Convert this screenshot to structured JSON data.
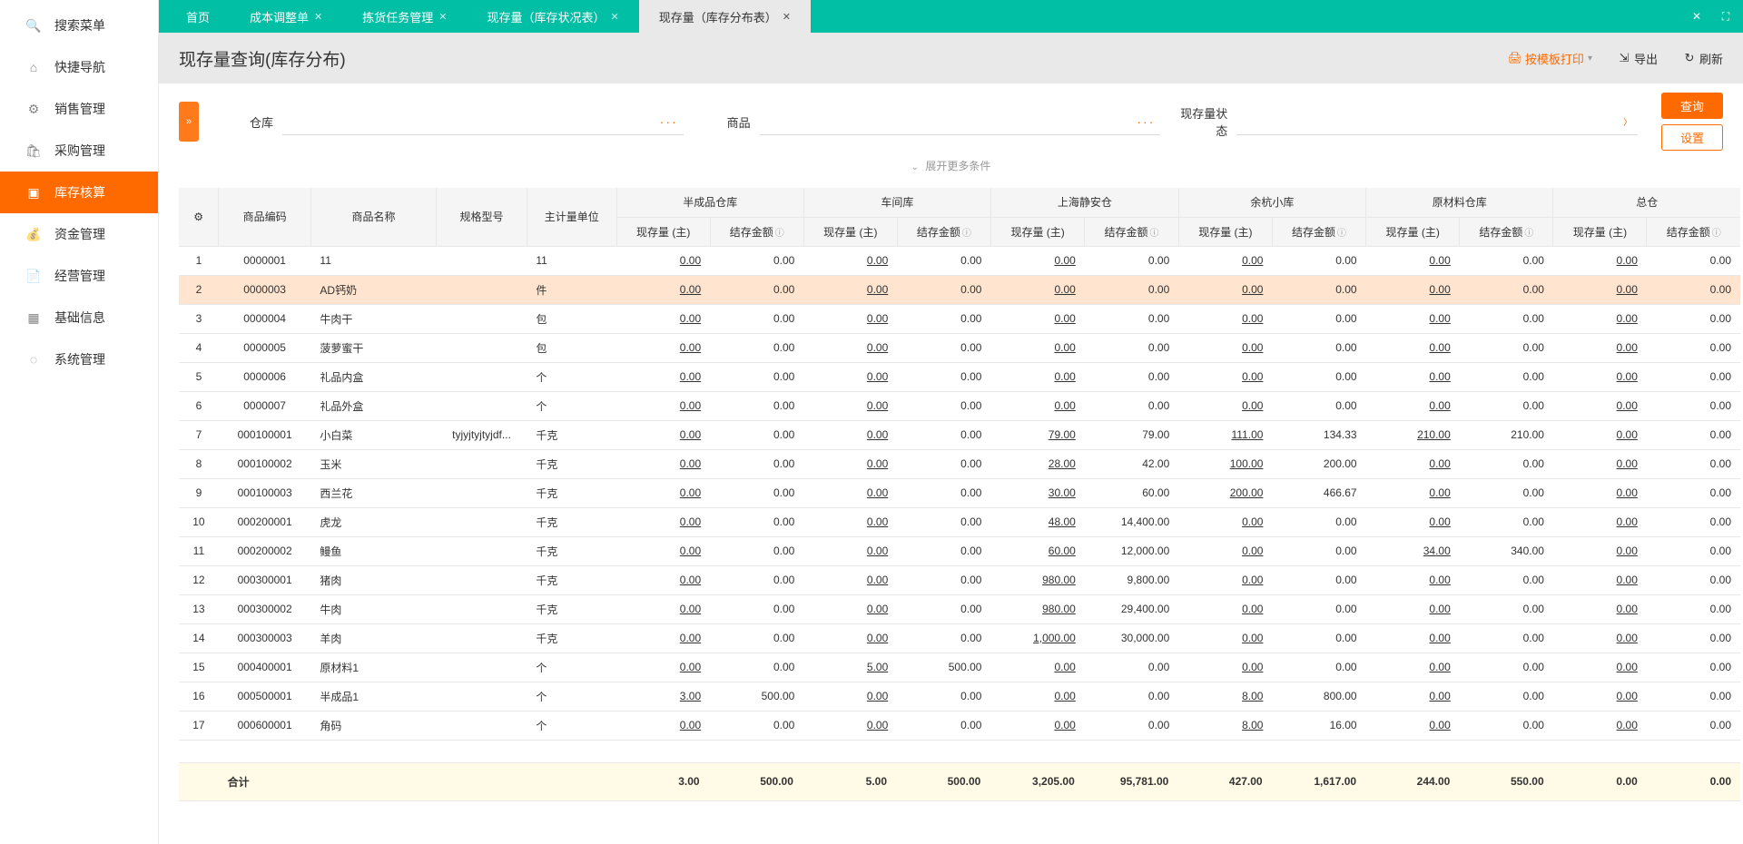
{
  "sidebar": [
    {
      "icon": "search",
      "label": "搜索菜单"
    },
    {
      "icon": "home",
      "label": "快捷导航"
    },
    {
      "icon": "gear",
      "label": "销售管理"
    },
    {
      "icon": "bag",
      "label": "采购管理"
    },
    {
      "icon": "box",
      "label": "库存核算",
      "active": true
    },
    {
      "icon": "money",
      "label": "资金管理"
    },
    {
      "icon": "doc",
      "label": "经营管理"
    },
    {
      "icon": "grid",
      "label": "基础信息"
    },
    {
      "icon": "sys",
      "label": "系统管理"
    }
  ],
  "tabs": [
    {
      "label": "首页"
    },
    {
      "label": "成本调整单",
      "closable": true
    },
    {
      "label": "拣货任务管理",
      "closable": true
    },
    {
      "label": "现存量（库存状况表）",
      "closable": true
    },
    {
      "label": "现存量（库存分布表）",
      "closable": true,
      "active": true
    }
  ],
  "page_title": "现存量查询(库存分布)",
  "head_actions": {
    "print": "按模板打印",
    "export": "导出",
    "refresh": "刷新"
  },
  "filters": {
    "f1": "仓库",
    "f2": "商品",
    "f3": "现存量状态",
    "btn_query": "查询",
    "btn_set": "设置",
    "expand": "展开更多条件"
  },
  "groups": [
    "半成品仓库",
    "车间库",
    "上海静安仓",
    "余杭小库",
    "原材料仓库",
    "总仓"
  ],
  "head_cols": {
    "idx": "",
    "code": "商品编码",
    "name": "商品名称",
    "spec": "规格型号",
    "unit": "主计量单位",
    "qty": "现存量 (主)",
    "amt": "结存金额"
  },
  "rows": [
    {
      "idx": "1",
      "code": "0000001",
      "name": "11",
      "spec": "",
      "unit": "11",
      "vals": [
        [
          "0.00",
          "0.00"
        ],
        [
          "0.00",
          "0.00"
        ],
        [
          "0.00",
          "0.00"
        ],
        [
          "0.00",
          "0.00"
        ],
        [
          "0.00",
          "0.00"
        ],
        [
          "0.00",
          "0.00"
        ]
      ]
    },
    {
      "idx": "2",
      "code": "0000003",
      "name": "AD钙奶",
      "spec": "",
      "unit": "件",
      "highlight": true,
      "vals": [
        [
          "0.00",
          "0.00"
        ],
        [
          "0.00",
          "0.00"
        ],
        [
          "0.00",
          "0.00"
        ],
        [
          "0.00",
          "0.00"
        ],
        [
          "0.00",
          "0.00"
        ],
        [
          "0.00",
          "0.00"
        ]
      ]
    },
    {
      "idx": "3",
      "code": "0000004",
      "name": "牛肉干",
      "spec": "",
      "unit": "包",
      "vals": [
        [
          "0.00",
          "0.00"
        ],
        [
          "0.00",
          "0.00"
        ],
        [
          "0.00",
          "0.00"
        ],
        [
          "0.00",
          "0.00"
        ],
        [
          "0.00",
          "0.00"
        ],
        [
          "0.00",
          "0.00"
        ]
      ]
    },
    {
      "idx": "4",
      "code": "0000005",
      "name": "菠萝蜜干",
      "spec": "",
      "unit": "包",
      "vals": [
        [
          "0.00",
          "0.00"
        ],
        [
          "0.00",
          "0.00"
        ],
        [
          "0.00",
          "0.00"
        ],
        [
          "0.00",
          "0.00"
        ],
        [
          "0.00",
          "0.00"
        ],
        [
          "0.00",
          "0.00"
        ]
      ]
    },
    {
      "idx": "5",
      "code": "0000006",
      "name": "礼品内盒",
      "spec": "",
      "unit": "个",
      "vals": [
        [
          "0.00",
          "0.00"
        ],
        [
          "0.00",
          "0.00"
        ],
        [
          "0.00",
          "0.00"
        ],
        [
          "0.00",
          "0.00"
        ],
        [
          "0.00",
          "0.00"
        ],
        [
          "0.00",
          "0.00"
        ]
      ]
    },
    {
      "idx": "6",
      "code": "0000007",
      "name": "礼品外盒",
      "spec": "",
      "unit": "个",
      "vals": [
        [
          "0.00",
          "0.00"
        ],
        [
          "0.00",
          "0.00"
        ],
        [
          "0.00",
          "0.00"
        ],
        [
          "0.00",
          "0.00"
        ],
        [
          "0.00",
          "0.00"
        ],
        [
          "0.00",
          "0.00"
        ]
      ]
    },
    {
      "idx": "7",
      "code": "000100001",
      "name": "小白菜",
      "spec": "tyjyjtyjtyjdf...",
      "unit": "千克",
      "vals": [
        [
          "0.00",
          "0.00"
        ],
        [
          "0.00",
          "0.00"
        ],
        [
          "79.00",
          "79.00"
        ],
        [
          "111.00",
          "134.33"
        ],
        [
          "210.00",
          "210.00"
        ],
        [
          "0.00",
          "0.00"
        ]
      ]
    },
    {
      "idx": "8",
      "code": "000100002",
      "name": "玉米",
      "spec": "",
      "unit": "千克",
      "vals": [
        [
          "0.00",
          "0.00"
        ],
        [
          "0.00",
          "0.00"
        ],
        [
          "28.00",
          "42.00"
        ],
        [
          "100.00",
          "200.00"
        ],
        [
          "0.00",
          "0.00"
        ],
        [
          "0.00",
          "0.00"
        ]
      ]
    },
    {
      "idx": "9",
      "code": "000100003",
      "name": "西兰花",
      "spec": "",
      "unit": "千克",
      "vals": [
        [
          "0.00",
          "0.00"
        ],
        [
          "0.00",
          "0.00"
        ],
        [
          "30.00",
          "60.00"
        ],
        [
          "200.00",
          "466.67"
        ],
        [
          "0.00",
          "0.00"
        ],
        [
          "0.00",
          "0.00"
        ]
      ]
    },
    {
      "idx": "10",
      "code": "000200001",
      "name": "虎龙",
      "spec": "",
      "unit": "千克",
      "vals": [
        [
          "0.00",
          "0.00"
        ],
        [
          "0.00",
          "0.00"
        ],
        [
          "48.00",
          "14,400.00"
        ],
        [
          "0.00",
          "0.00"
        ],
        [
          "0.00",
          "0.00"
        ],
        [
          "0.00",
          "0.00"
        ]
      ]
    },
    {
      "idx": "11",
      "code": "000200002",
      "name": "鳗鱼",
      "spec": "",
      "unit": "千克",
      "vals": [
        [
          "0.00",
          "0.00"
        ],
        [
          "0.00",
          "0.00"
        ],
        [
          "60.00",
          "12,000.00"
        ],
        [
          "0.00",
          "0.00"
        ],
        [
          "34.00",
          "340.00"
        ],
        [
          "0.00",
          "0.00"
        ]
      ]
    },
    {
      "idx": "12",
      "code": "000300001",
      "name": "猪肉",
      "spec": "",
      "unit": "千克",
      "vals": [
        [
          "0.00",
          "0.00"
        ],
        [
          "0.00",
          "0.00"
        ],
        [
          "980.00",
          "9,800.00"
        ],
        [
          "0.00",
          "0.00"
        ],
        [
          "0.00",
          "0.00"
        ],
        [
          "0.00",
          "0.00"
        ]
      ]
    },
    {
      "idx": "13",
      "code": "000300002",
      "name": "牛肉",
      "spec": "",
      "unit": "千克",
      "vals": [
        [
          "0.00",
          "0.00"
        ],
        [
          "0.00",
          "0.00"
        ],
        [
          "980.00",
          "29,400.00"
        ],
        [
          "0.00",
          "0.00"
        ],
        [
          "0.00",
          "0.00"
        ],
        [
          "0.00",
          "0.00"
        ]
      ]
    },
    {
      "idx": "14",
      "code": "000300003",
      "name": "羊肉",
      "spec": "",
      "unit": "千克",
      "vals": [
        [
          "0.00",
          "0.00"
        ],
        [
          "0.00",
          "0.00"
        ],
        [
          "1,000.00",
          "30,000.00"
        ],
        [
          "0.00",
          "0.00"
        ],
        [
          "0.00",
          "0.00"
        ],
        [
          "0.00",
          "0.00"
        ]
      ]
    },
    {
      "idx": "15",
      "code": "000400001",
      "name": "原材料1",
      "spec": "",
      "unit": "个",
      "vals": [
        [
          "0.00",
          "0.00"
        ],
        [
          "5.00",
          "500.00"
        ],
        [
          "0.00",
          "0.00"
        ],
        [
          "0.00",
          "0.00"
        ],
        [
          "0.00",
          "0.00"
        ],
        [
          "0.00",
          "0.00"
        ]
      ]
    },
    {
      "idx": "16",
      "code": "000500001",
      "name": "半成品1",
      "spec": "",
      "unit": "个",
      "vals": [
        [
          "3.00",
          "500.00"
        ],
        [
          "0.00",
          "0.00"
        ],
        [
          "0.00",
          "0.00"
        ],
        [
          "8.00",
          "800.00"
        ],
        [
          "0.00",
          "0.00"
        ],
        [
          "0.00",
          "0.00"
        ]
      ]
    },
    {
      "idx": "17",
      "code": "000600001",
      "name": "角码",
      "spec": "",
      "unit": "个",
      "vals": [
        [
          "0.00",
          "0.00"
        ],
        [
          "0.00",
          "0.00"
        ],
        [
          "0.00",
          "0.00"
        ],
        [
          "8.00",
          "16.00"
        ],
        [
          "0.00",
          "0.00"
        ],
        [
          "0.00",
          "0.00"
        ]
      ]
    }
  ],
  "totals": {
    "label": "合计",
    "vals": [
      "3.00",
      "500.00",
      "5.00",
      "500.00",
      "3,205.00",
      "95,781.00",
      "427.00",
      "1,617.00",
      "244.00",
      "550.00",
      "0.00",
      "0.00"
    ]
  },
  "colors": {
    "accent": "#ff6a00",
    "teal": "#00bfa5",
    "highlight": "#ffe5cf",
    "total_bg": "#fffbe6"
  }
}
